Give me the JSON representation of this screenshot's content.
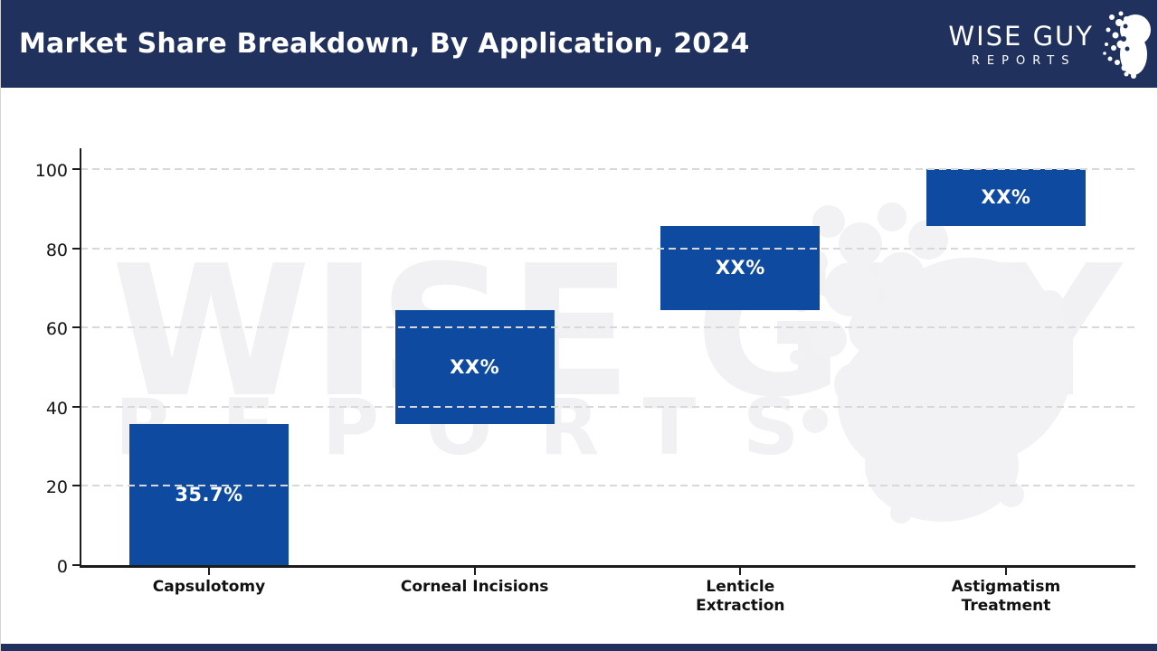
{
  "header": {
    "title": "Market Share Breakdown, By Application, 2024",
    "logo": {
      "line1": "WISE GUY",
      "line2": "REPORTS"
    }
  },
  "watermark": {
    "line1": "WISE GUY",
    "line2": "REPORTS"
  },
  "colors": {
    "header_bg": "#20315e",
    "footer_bg": "#20315e",
    "bar": "#0d4aa0",
    "gridline": "#d8d8d8",
    "axis": "#1c1c1c",
    "bar_label": "#ffffff",
    "watermark": "#f1f1f3"
  },
  "chart_data": {
    "type": "bar",
    "variant": "waterfall",
    "title": "Market Share Breakdown, By Application, 2024",
    "xlabel": "",
    "ylabel": "",
    "ylim": [
      0,
      100
    ],
    "yticks": [
      0,
      20,
      40,
      60,
      80,
      100
    ],
    "grid": "horizontal-dashed",
    "legend": "none",
    "categories": [
      [
        "Capsulotomy"
      ],
      [
        "Corneal Incisions"
      ],
      [
        "Lenticle",
        "Extraction"
      ],
      [
        "Astigmatism",
        "Treatment"
      ]
    ],
    "bars": [
      {
        "category": "Capsulotomy",
        "start": 0,
        "end": 35.7,
        "label": "35.7%"
      },
      {
        "category": "Corneal Incisions",
        "start": 35.7,
        "end": 64.3,
        "label": "XX%"
      },
      {
        "category": "Lenticle Extraction",
        "start": 64.3,
        "end": 85.7,
        "label": "XX%"
      },
      {
        "category": "Astigmatism Treatment",
        "start": 85.7,
        "end": 100,
        "label": "XX%"
      }
    ]
  }
}
